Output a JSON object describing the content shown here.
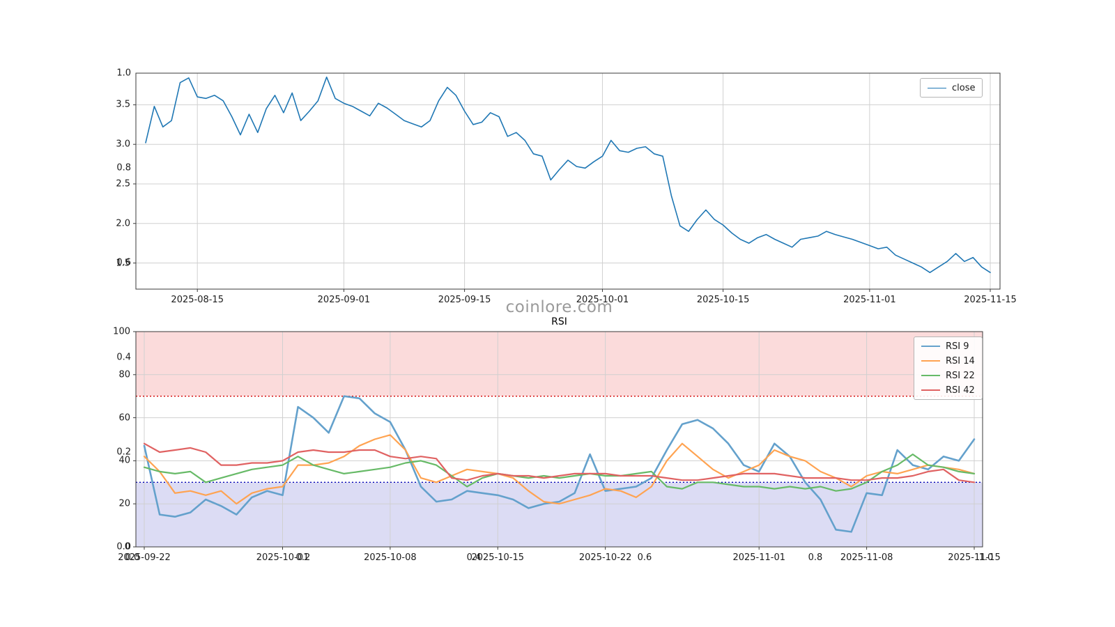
{
  "watermark": "coinlore.com",
  "figure_axis": {
    "x_labels": [
      "0.0",
      "0.2",
      "0.4",
      "0.6",
      "0.8",
      "1.0"
    ],
    "y_labels": [
      "1.0",
      "0.8",
      "0.6",
      "0.4",
      "0.2",
      "0.0"
    ]
  },
  "chart_data": [
    {
      "type": "line",
      "title": "",
      "legend_position": "upper right",
      "ylim": [
        1.17,
        3.9
      ],
      "grid": true,
      "y_ticks": [
        {
          "label": "1.5",
          "value": 1.5
        },
        {
          "label": "2.0",
          "value": 2.0
        },
        {
          "label": "2.5",
          "value": 2.5
        },
        {
          "label": "3.0",
          "value": 3.0
        },
        {
          "label": "3.5",
          "value": 3.5
        }
      ],
      "x_ticks": [
        {
          "label": "2025-08-15",
          "index": 6
        },
        {
          "label": "2025-09-01",
          "index": 23
        },
        {
          "label": "2025-09-15",
          "index": 37
        },
        {
          "label": "2025-10-01",
          "index": 53
        },
        {
          "label": "2025-10-15",
          "index": 67
        },
        {
          "label": "2025-11-01",
          "index": 84
        },
        {
          "label": "2025-11-15",
          "index": 98
        }
      ],
      "dates": [
        "2025-08-09",
        "2025-08-10",
        "2025-08-11",
        "2025-08-12",
        "2025-08-13",
        "2025-08-14",
        "2025-08-15",
        "2025-08-16",
        "2025-08-17",
        "2025-08-18",
        "2025-08-19",
        "2025-08-20",
        "2025-08-21",
        "2025-08-22",
        "2025-08-23",
        "2025-08-24",
        "2025-08-25",
        "2025-08-26",
        "2025-08-27",
        "2025-08-28",
        "2025-08-29",
        "2025-08-30",
        "2025-08-31",
        "2025-09-01",
        "2025-09-02",
        "2025-09-03",
        "2025-09-04",
        "2025-09-05",
        "2025-09-06",
        "2025-09-07",
        "2025-09-08",
        "2025-09-09",
        "2025-09-10",
        "2025-09-11",
        "2025-09-12",
        "2025-09-13",
        "2025-09-14",
        "2025-09-15",
        "2025-09-16",
        "2025-09-17",
        "2025-09-18",
        "2025-09-19",
        "2025-09-20",
        "2025-09-21",
        "2025-09-22",
        "2025-09-23",
        "2025-09-24",
        "2025-09-25",
        "2025-09-26",
        "2025-09-27",
        "2025-09-28",
        "2025-09-29",
        "2025-09-30",
        "2025-10-01",
        "2025-10-02",
        "2025-10-03",
        "2025-10-04",
        "2025-10-05",
        "2025-10-06",
        "2025-10-07",
        "2025-10-08",
        "2025-10-09",
        "2025-10-10",
        "2025-10-11",
        "2025-10-12",
        "2025-10-13",
        "2025-10-14",
        "2025-10-15",
        "2025-10-16",
        "2025-10-17",
        "2025-10-18",
        "2025-10-19",
        "2025-10-20",
        "2025-10-21",
        "2025-10-22",
        "2025-10-23",
        "2025-10-24",
        "2025-10-25",
        "2025-10-26",
        "2025-10-27",
        "2025-10-28",
        "2025-10-29",
        "2025-10-30",
        "2025-10-31",
        "2025-11-01",
        "2025-11-02",
        "2025-11-03",
        "2025-11-04",
        "2025-11-05",
        "2025-11-06",
        "2025-11-07",
        "2025-11-08",
        "2025-11-09",
        "2025-11-10",
        "2025-11-11",
        "2025-11-12",
        "2025-11-13",
        "2025-11-14",
        "2025-11-15"
      ],
      "series": [
        {
          "name": "close",
          "color": "#1f77b4",
          "width": 1.6,
          "values": [
            3.02,
            3.48,
            3.22,
            3.3,
            3.78,
            3.84,
            3.6,
            3.58,
            3.62,
            3.55,
            3.35,
            3.12,
            3.38,
            3.15,
            3.45,
            3.62,
            3.4,
            3.65,
            3.3,
            3.42,
            3.55,
            3.85,
            3.58,
            3.52,
            3.48,
            3.42,
            3.36,
            3.52,
            3.46,
            3.38,
            3.3,
            3.26,
            3.22,
            3.3,
            3.55,
            3.72,
            3.62,
            3.42,
            3.25,
            3.28,
            3.4,
            3.35,
            3.1,
            3.15,
            3.05,
            2.88,
            2.85,
            2.55,
            2.68,
            2.8,
            2.72,
            2.7,
            2.78,
            2.85,
            3.05,
            2.92,
            2.9,
            2.95,
            2.97,
            2.88,
            2.85,
            2.35,
            1.97,
            1.9,
            2.05,
            2.17,
            2.05,
            1.98,
            1.88,
            1.8,
            1.75,
            1.82,
            1.86,
            1.8,
            1.75,
            1.7,
            1.8,
            1.82,
            1.84,
            1.9,
            1.86,
            1.83,
            1.8,
            1.76,
            1.72,
            1.68,
            1.7,
            1.6,
            1.55,
            1.5,
            1.45,
            1.38,
            1.45,
            1.52,
            1.62,
            1.52,
            1.57,
            1.45,
            1.38
          ]
        }
      ]
    },
    {
      "type": "line",
      "title": "RSI",
      "legend_position": "upper right",
      "ylim": [
        0,
        100
      ],
      "grid": true,
      "bands": [
        {
          "from": 70,
          "to": 100,
          "color": "#fbdbdb",
          "meaning": "overbought"
        },
        {
          "from": 0,
          "to": 30,
          "color": "#dcdcf4",
          "meaning": "oversold"
        }
      ],
      "threshold_lines": [
        {
          "value": 70,
          "color": "#d40000"
        },
        {
          "value": 30,
          "color": "#0000b4"
        }
      ],
      "y_ticks": [
        {
          "label": "0",
          "value": 0
        },
        {
          "label": "20",
          "value": 20
        },
        {
          "label": "40",
          "value": 40
        },
        {
          "label": "60",
          "value": 60
        },
        {
          "label": "80",
          "value": 80
        },
        {
          "label": "100",
          "value": 100
        }
      ],
      "x_ticks": [
        {
          "label": "2025-09-22",
          "index": 0
        },
        {
          "label": "2025-10-01",
          "index": 9
        },
        {
          "label": "2025-10-08",
          "index": 16
        },
        {
          "label": "2025-10-15",
          "index": 23
        },
        {
          "label": "2025-10-22",
          "index": 30
        },
        {
          "label": "2025-11-01",
          "index": 40
        },
        {
          "label": "2025-11-08",
          "index": 47
        },
        {
          "label": "2025-11-15",
          "index": 54
        }
      ],
      "dates": [
        "2025-09-22",
        "2025-09-23",
        "2025-09-24",
        "2025-09-25",
        "2025-09-26",
        "2025-09-27",
        "2025-09-28",
        "2025-09-29",
        "2025-09-30",
        "2025-10-01",
        "2025-10-02",
        "2025-10-03",
        "2025-10-04",
        "2025-10-05",
        "2025-10-06",
        "2025-10-07",
        "2025-10-08",
        "2025-10-09",
        "2025-10-10",
        "2025-10-11",
        "2025-10-12",
        "2025-10-13",
        "2025-10-14",
        "2025-10-15",
        "2025-10-16",
        "2025-10-17",
        "2025-10-18",
        "2025-10-19",
        "2025-10-20",
        "2025-10-21",
        "2025-10-22",
        "2025-10-23",
        "2025-10-24",
        "2025-10-25",
        "2025-10-26",
        "2025-10-27",
        "2025-10-28",
        "2025-10-29",
        "2025-10-30",
        "2025-10-31",
        "2025-11-01",
        "2025-11-02",
        "2025-11-03",
        "2025-11-04",
        "2025-11-05",
        "2025-11-06",
        "2025-11-07",
        "2025-11-08",
        "2025-11-09",
        "2025-11-10",
        "2025-11-11",
        "2025-11-12",
        "2025-11-13",
        "2025-11-14",
        "2025-11-15"
      ],
      "series": [
        {
          "name": "RSI 9",
          "color": "#64a1cc",
          "width": 2.6,
          "values": [
            47,
            15,
            14,
            16,
            22,
            19,
            15,
            23,
            26,
            24,
            65,
            60,
            53,
            70,
            69,
            62,
            58,
            45,
            28,
            21,
            22,
            26,
            25,
            24,
            22,
            18,
            20,
            21,
            25,
            43,
            26,
            27,
            28,
            32,
            45,
            57,
            59,
            55,
            48,
            38,
            35,
            48,
            42,
            30,
            22,
            8,
            7,
            25,
            24,
            45,
            38,
            36,
            42,
            40,
            50
          ]
        },
        {
          "name": "RSI 14",
          "color": "#ffa351",
          "width": 2.2,
          "values": [
            42,
            35,
            25,
            26,
            24,
            26,
            20,
            25,
            27,
            28,
            38,
            38,
            39,
            42,
            47,
            50,
            52,
            45,
            32,
            30,
            33,
            36,
            35,
            34,
            32,
            26,
            21,
            20,
            22,
            24,
            27,
            26,
            23,
            28,
            40,
            48,
            42,
            36,
            32,
            35,
            38,
            45,
            42,
            40,
            35,
            32,
            28,
            33,
            35,
            34,
            36,
            38,
            37,
            36,
            34
          ]
        },
        {
          "name": "RSI 22",
          "color": "#67ba67",
          "width": 2.2,
          "values": [
            37,
            35,
            34,
            35,
            30,
            32,
            34,
            36,
            37,
            38,
            42,
            38,
            36,
            34,
            35,
            36,
            37,
            39,
            40,
            38,
            33,
            28,
            32,
            34,
            33,
            32,
            33,
            32,
            33,
            34,
            33,
            33,
            34,
            35,
            28,
            27,
            30,
            30,
            29,
            28,
            28,
            27,
            28,
            27,
            28,
            26,
            27,
            30,
            35,
            38,
            43,
            38,
            37,
            35,
            34
          ]
        },
        {
          "name": "RSI 42",
          "color": "#e06262",
          "width": 2.2,
          "values": [
            48,
            44,
            45,
            46,
            44,
            38,
            38,
            39,
            39,
            40,
            44,
            45,
            44,
            44,
            45,
            45,
            42,
            41,
            42,
            41,
            32,
            31,
            33,
            34,
            33,
            33,
            32,
            33,
            34,
            34,
            34,
            33,
            33,
            33,
            32,
            31,
            31,
            32,
            33,
            34,
            34,
            34,
            33,
            32,
            32,
            32,
            31,
            31,
            32,
            32,
            33,
            35,
            36,
            31,
            30
          ]
        }
      ]
    }
  ]
}
